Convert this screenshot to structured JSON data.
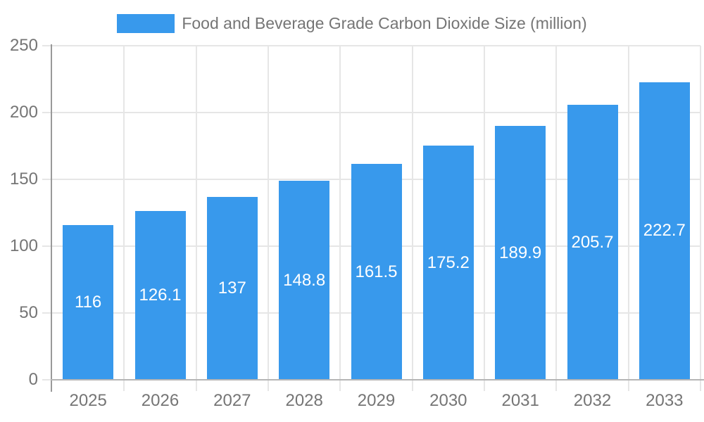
{
  "chart_data": {
    "type": "bar",
    "title": "Food and Beverage Grade Carbon Dioxide Size (million)",
    "categories": [
      "2025",
      "2026",
      "2027",
      "2028",
      "2029",
      "2030",
      "2031",
      "2032",
      "2033"
    ],
    "values": [
      116,
      126.1,
      137,
      148.8,
      161.5,
      175.2,
      189.9,
      205.7,
      222.7
    ],
    "xlabel": "",
    "ylabel": "",
    "ylim": [
      0,
      250
    ],
    "yticks": [
      0,
      50,
      100,
      150,
      200,
      250
    ],
    "grid": true,
    "legend_position": "top-center",
    "colors": {
      "bar": "#3899ec",
      "bar_label": "#ffffff",
      "axis_text": "#757575",
      "legend_text": "#757575",
      "gridline": "#e6e6e6",
      "y_axis_line": "#999999",
      "x_axis_line": "#b5b5b5"
    }
  }
}
